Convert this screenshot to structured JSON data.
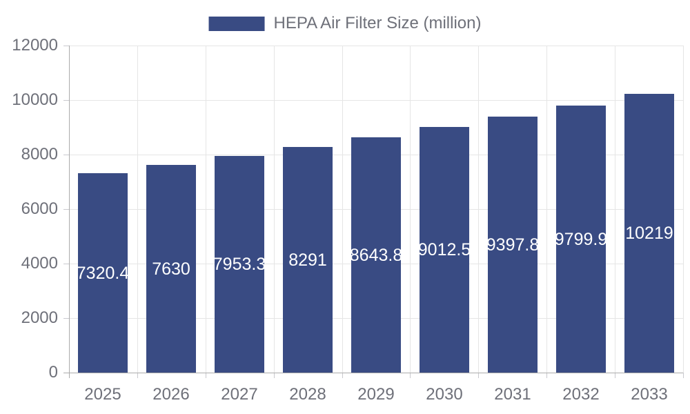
{
  "legend": {
    "label": "HEPA Air Filter Size (million)"
  },
  "chart_data": {
    "type": "bar",
    "title": "",
    "series_name": "HEPA Air Filter Size (million)",
    "categories": [
      "2025",
      "2026",
      "2027",
      "2028",
      "2029",
      "2030",
      "2031",
      "2032",
      "2033"
    ],
    "values": [
      7320.4,
      7630,
      7953.3,
      8291,
      8643.8,
      9012.5,
      9397.8,
      9799.9,
      10219
    ],
    "xlabel": "",
    "ylabel": "",
    "ylim": [
      0,
      12000
    ],
    "yticks": [
      0,
      2000,
      4000,
      6000,
      8000,
      10000,
      12000
    ],
    "grid": true,
    "legend_position": "top-center",
    "value_label_position": "inside-middle",
    "colors": {
      "bar": "#394B83",
      "value_label": "#FFFFFF",
      "axis_text": "#6E7079",
      "grid_line": "#E5E5E5",
      "axis_line": "#ABABAB",
      "tick_line": "#C9C9CE",
      "background": "#FFFFFF"
    }
  }
}
